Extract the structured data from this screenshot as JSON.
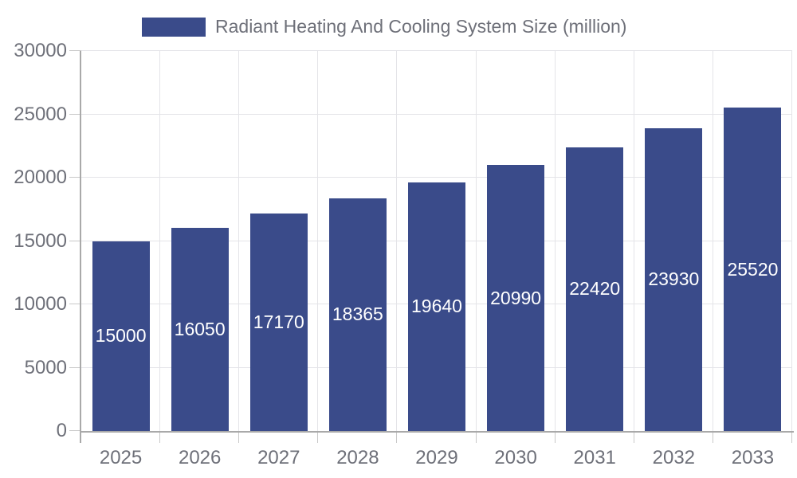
{
  "legend": {
    "label": "Radiant Heating And Cooling System Size (million)",
    "swatch_color": "#3a4b8a"
  },
  "chart_data": {
    "type": "bar",
    "title": "Radiant Heating And Cooling System Size (million)",
    "series_name": "Radiant Heating And Cooling System Size (million)",
    "categories": [
      "2025",
      "2026",
      "2027",
      "2028",
      "2029",
      "2030",
      "2031",
      "2032",
      "2033"
    ],
    "values": [
      15000,
      16050,
      17170,
      18365,
      19640,
      20990,
      22420,
      23930,
      25520
    ],
    "xlabel": "",
    "ylabel": "",
    "ylim": [
      0,
      30000
    ],
    "y_ticks": [
      0,
      5000,
      10000,
      15000,
      20000,
      25000,
      30000
    ],
    "y_tick_labels": [
      "0",
      "5000",
      "10000",
      "15000",
      "20000",
      "25000",
      "30000"
    ],
    "grid": true,
    "legend_position": "top",
    "value_label_position": "center-of-bar",
    "colors": {
      "bar": "#3a4b8a",
      "value_label": "#ffffff",
      "axis_label": "#6e7079",
      "legend_label": "#6e7079",
      "grid_line": "#e4e4e8",
      "axis_line": "#a9a9a9",
      "tick": "#c9c9c9",
      "background": "#ffffff"
    }
  }
}
